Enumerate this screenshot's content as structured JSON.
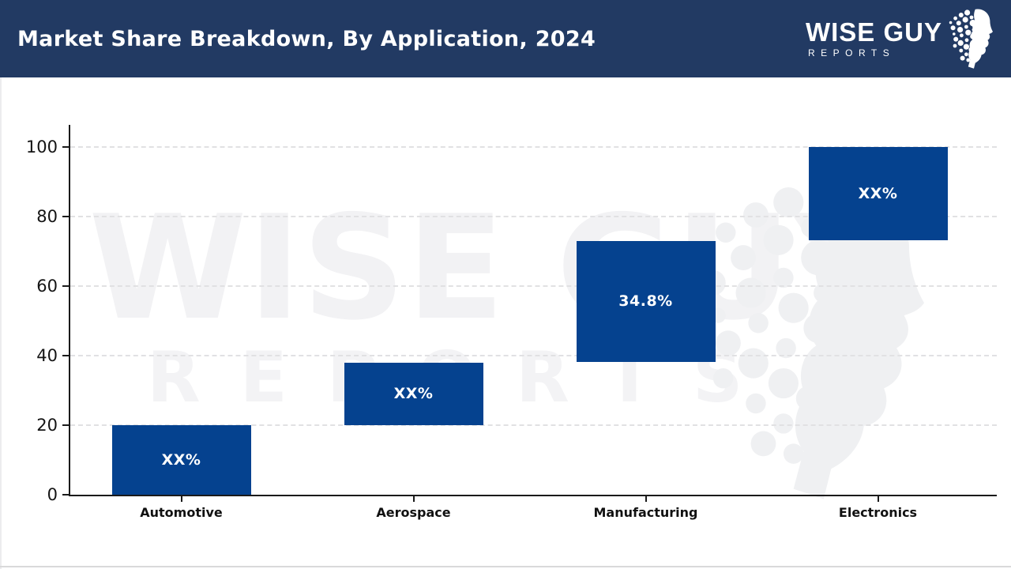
{
  "header": {
    "title": "Market Share Breakdown, By Application, 2024",
    "logo": {
      "wordmark": "WISE GUY",
      "subtext": "REPORTS"
    }
  },
  "watermark": {
    "wordmark": "WISE GUY",
    "subtext": "REPORTS"
  },
  "chart_data": {
    "type": "bar",
    "subtype": "waterfall",
    "title": "Market Share Breakdown, By Application, 2024",
    "categories": [
      "Automotive",
      "Aerospace",
      "Manufacturing",
      "Electronics"
    ],
    "bars": [
      {
        "category": "Automotive",
        "base": 0,
        "top": 20,
        "label": "XX%"
      },
      {
        "category": "Aerospace",
        "base": 20,
        "top": 38,
        "label": "XX%"
      },
      {
        "category": "Manufacturing",
        "base": 38.2,
        "top": 73,
        "label": "34.8%"
      },
      {
        "category": "Electronics",
        "base": 73.2,
        "top": 100,
        "label": "XX%"
      }
    ],
    "xlabel": "",
    "ylabel": "",
    "ylim": [
      0,
      105
    ],
    "yticks": [
      0,
      20,
      40,
      60,
      80,
      100
    ],
    "grid": {
      "horizontal": true,
      "style": "dashed"
    },
    "legend": "none",
    "bar_color": "#05428F"
  },
  "colors": {
    "header_bg": "#223A63",
    "bar": "#05428F",
    "bar_label_text": "#FFFFFF",
    "axis": "#1A1A1A",
    "gridline": "#E1E1E3",
    "watermark": "#F2F2F4",
    "background": "#FFFFFF"
  }
}
